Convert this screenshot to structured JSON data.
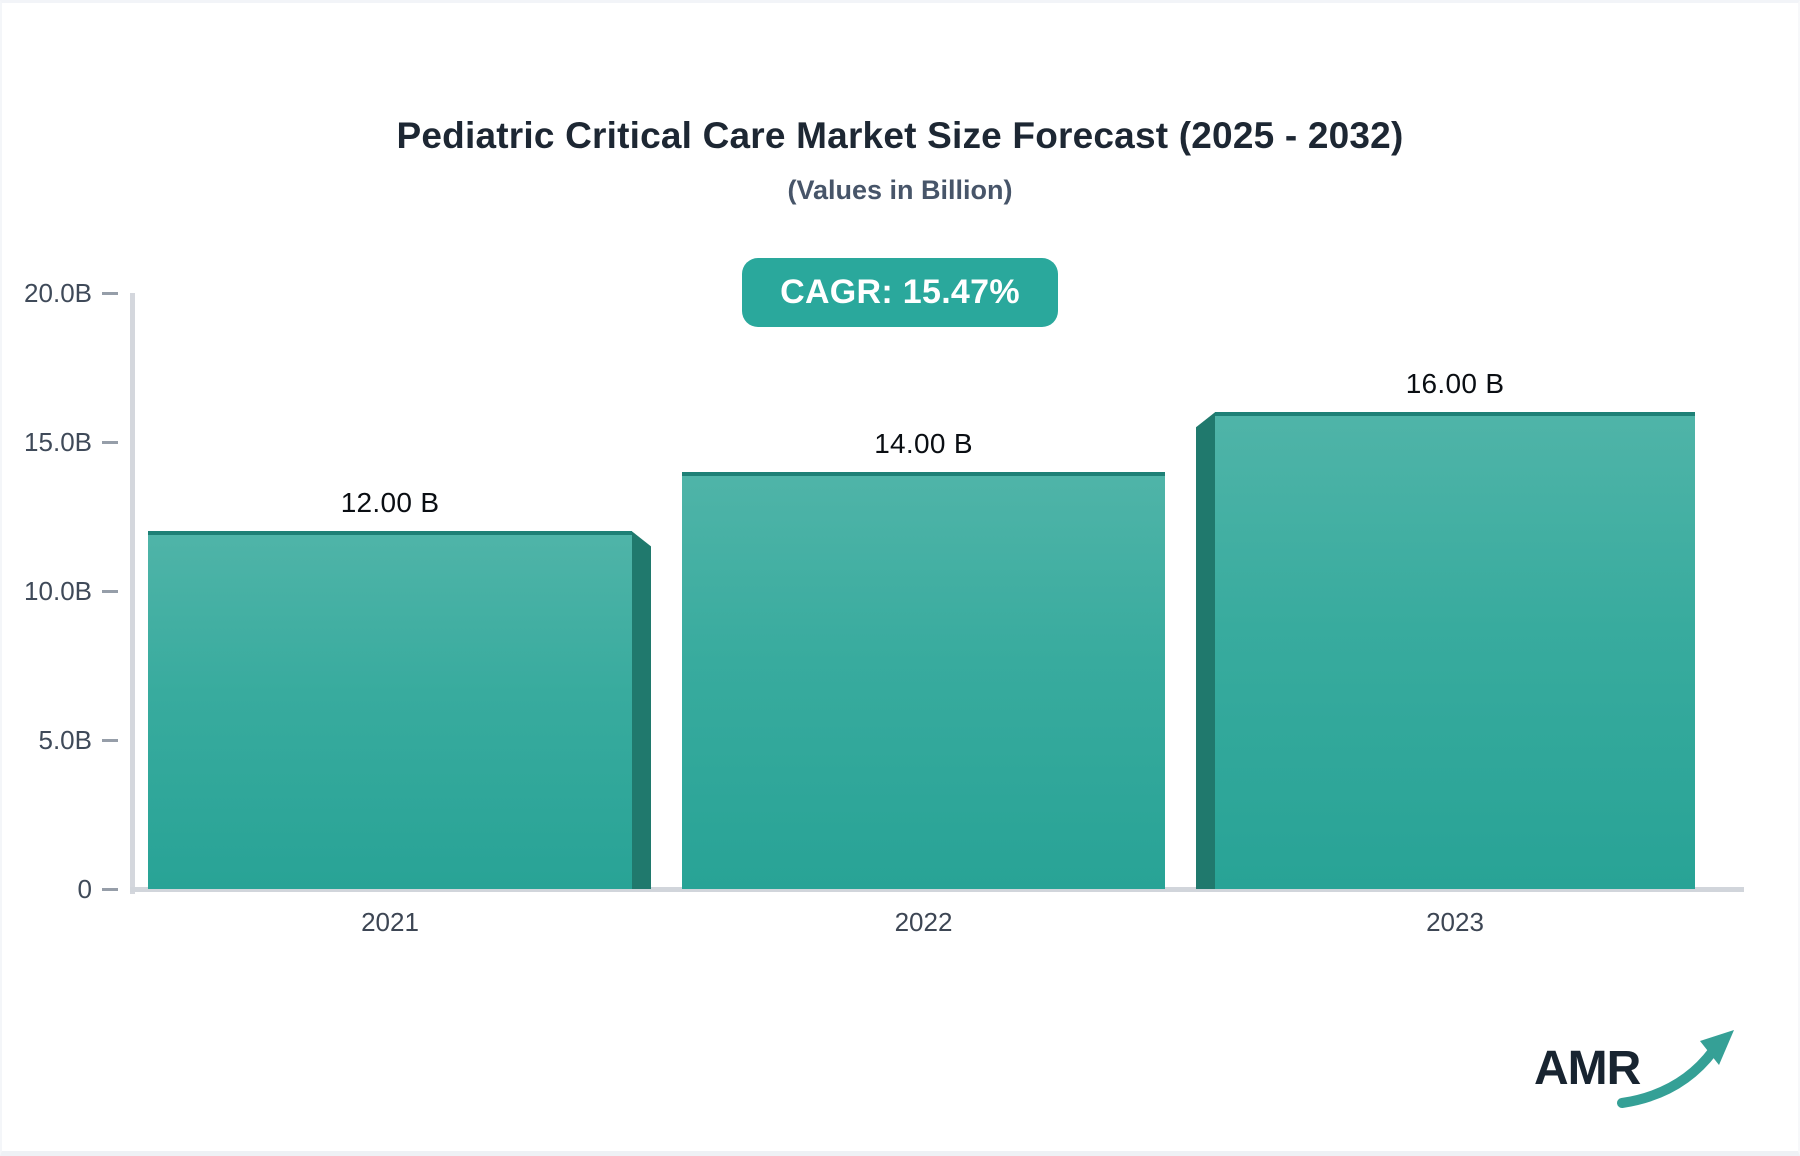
{
  "header": {
    "title": "Pediatric Critical Care Market Size Forecast (2025 - 2032)",
    "subtitle": "(Values in Billion)",
    "cagr_label": "CAGR: 15.47%"
  },
  "chart_data": {
    "type": "bar",
    "title": "Pediatric Critical Care Market Size Forecast (2025 - 2032)",
    "subtitle": "(Values in Billion)",
    "cagr_pct": 15.47,
    "categories": [
      "2021",
      "2022",
      "2023"
    ],
    "values": [
      12.0,
      14.0,
      16.0
    ],
    "value_labels": [
      "12.00 B",
      "14.00 B",
      "16.00 B"
    ],
    "xlabel": "",
    "ylabel": "",
    "ylim": [
      0,
      20
    ],
    "yticks": [
      0,
      5,
      10,
      15,
      20
    ],
    "ytick_labels": [
      "0",
      "5.0B",
      "10.0B",
      "15.0B",
      "20.0B"
    ],
    "grid": false,
    "legend": null,
    "bar_color_top": "#4fb4a8",
    "bar_color_bottom": "#28a396",
    "bar_side_face_color": "#20796d",
    "bar_top_edge_color": "#1e8076"
  },
  "colors": {
    "accent_teal": "#2aa89c",
    "axis_line": "#d4d7dd",
    "tick_dash": "#969ea9",
    "axis_label": "#3f4a59",
    "title_text": "#1d2733",
    "subtitle_text": "#475569",
    "logo_navy": "#182430",
    "logo_arrow_teal": "#35a096"
  },
  "logo": {
    "text": "AMR",
    "icon": "growth-arrow-icon"
  }
}
